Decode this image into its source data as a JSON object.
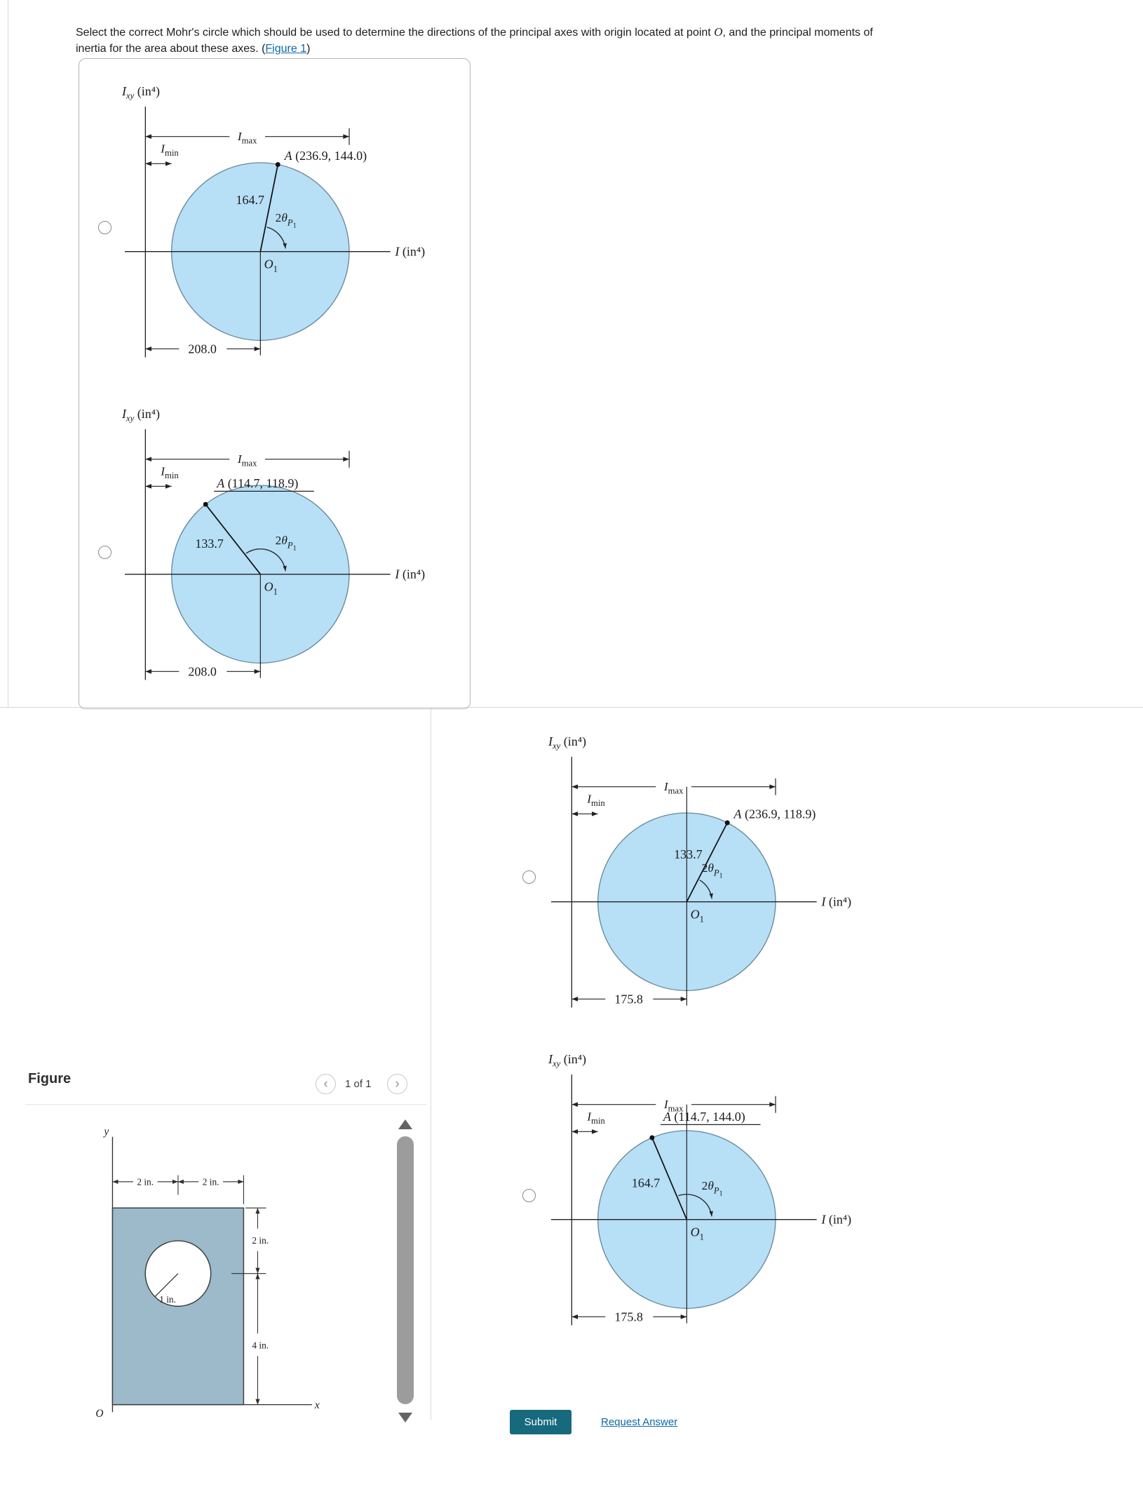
{
  "question": {
    "part1": "Select the correct Mohr's circle which should be used to determine the directions of the principal axes with origin located at point ",
    "origin_symbol": "O",
    "part2": ", and the principal moments of",
    "part3": "inertia for the area about these axes. ",
    "paren_open": "(",
    "figure_link": "Figure 1",
    "paren_close": ")"
  },
  "mohr_labels": {
    "i_symbol": "I",
    "xy_sub": "xy",
    "unit": "(in⁴)",
    "max_sub": "max",
    "min_sub": "min",
    "angle_pre": "2",
    "theta": "θ",
    "angle_sub": "P",
    "angle_sub2": "1",
    "origin_main": "O",
    "origin_sub": "1",
    "point_name": "A"
  },
  "options": [
    {
      "coords_label": "(236.9, 144.0)",
      "radius_label": "164.7",
      "center_label": "208.0",
      "point_i": 236.9,
      "point_ixy": 144.0,
      "center_i": 208.0
    },
    {
      "coords_label": "(114.7, 118.9)",
      "radius_label": "133.7",
      "center_label": "208.0",
      "point_i": 114.7,
      "point_ixy": 118.9,
      "center_i": 208.0
    },
    {
      "coords_label": "(236.9, 118.9)",
      "radius_label": "133.7",
      "center_label": "175.8",
      "point_i": 236.9,
      "point_ixy": 118.9,
      "center_i": 175.8
    },
    {
      "coords_label": "(114.7, 144.0)",
      "radius_label": "164.7",
      "center_label": "175.8",
      "point_i": 114.7,
      "point_ixy": 144.0,
      "center_i": 175.8
    }
  ],
  "figure_panel": {
    "title": "Figure",
    "page_label": "1 of 1",
    "prev_icon": "‹",
    "next_icon": "›",
    "drawing": {
      "dim_top_left": "2 in.",
      "dim_top_right": "2 in.",
      "dim_side_upper": "2 in.",
      "dim_side_lower": "4 in.",
      "hole_radius": "1 in.",
      "x_axis": "x",
      "y_axis": "y",
      "origin": "O"
    }
  },
  "actions": {
    "submit": "Submit",
    "request_answer": "Request Answer"
  },
  "colors": {
    "circle_fill": "#b7dff6",
    "circle_stroke": "#66889a",
    "figure_fill": "#9cbac9",
    "accent_teal": "#17697e",
    "link_blue": "#0d68a8"
  }
}
